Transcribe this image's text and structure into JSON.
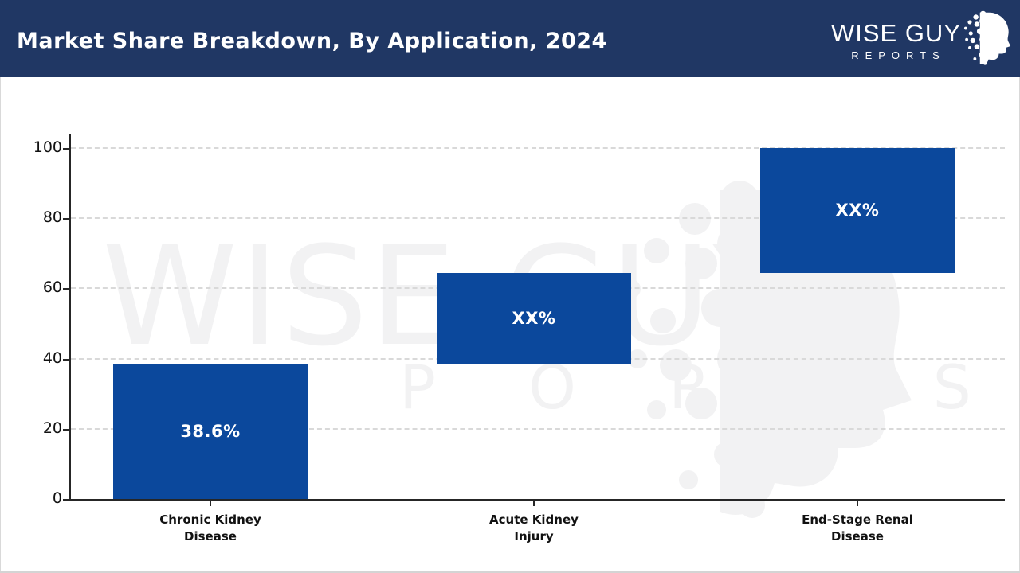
{
  "header": {
    "title": "Market Share Breakdown, By Application, 2024",
    "logo": {
      "line1": "WISE GUY",
      "line2": "REPORTS"
    }
  },
  "watermark": {
    "line1": "WISE GUY",
    "line2": "R E P O R T S"
  },
  "colors": {
    "header_bg": "#203764",
    "title_text": "#ffffff",
    "bar": "#0b489c",
    "bar_label": "#ffffff",
    "grid": "#d9d9d9",
    "axis": "#262626",
    "watermark": "#f2f2f3"
  },
  "chart_data": {
    "type": "bar",
    "subtype": "waterfall",
    "title": "Market Share Breakdown, By Application, 2024",
    "categories": [
      "Chronic Kidney Disease",
      "Acute Kidney Injury",
      "End-Stage Renal Disease"
    ],
    "category_lines": [
      [
        "Chronic Kidney",
        "Disease"
      ],
      [
        "Acute Kidney",
        "Injury"
      ],
      [
        "End-Stage Renal",
        "Disease"
      ]
    ],
    "segments": [
      {
        "category": "Chronic Kidney Disease",
        "start": 0,
        "end": 38.6,
        "label": "38.6%"
      },
      {
        "category": "Acute Kidney Injury",
        "start": 38.6,
        "end": 64.4,
        "label": "XX%"
      },
      {
        "category": "End-Stage Renal Disease",
        "start": 64.4,
        "end": 100,
        "label": "XX%"
      }
    ],
    "y_ticks": [
      0,
      20,
      40,
      60,
      80,
      100
    ],
    "ylim": [
      0,
      104
    ],
    "xlabel": "",
    "ylabel": "",
    "grid": "horizontal-dashed",
    "legend": "none"
  }
}
